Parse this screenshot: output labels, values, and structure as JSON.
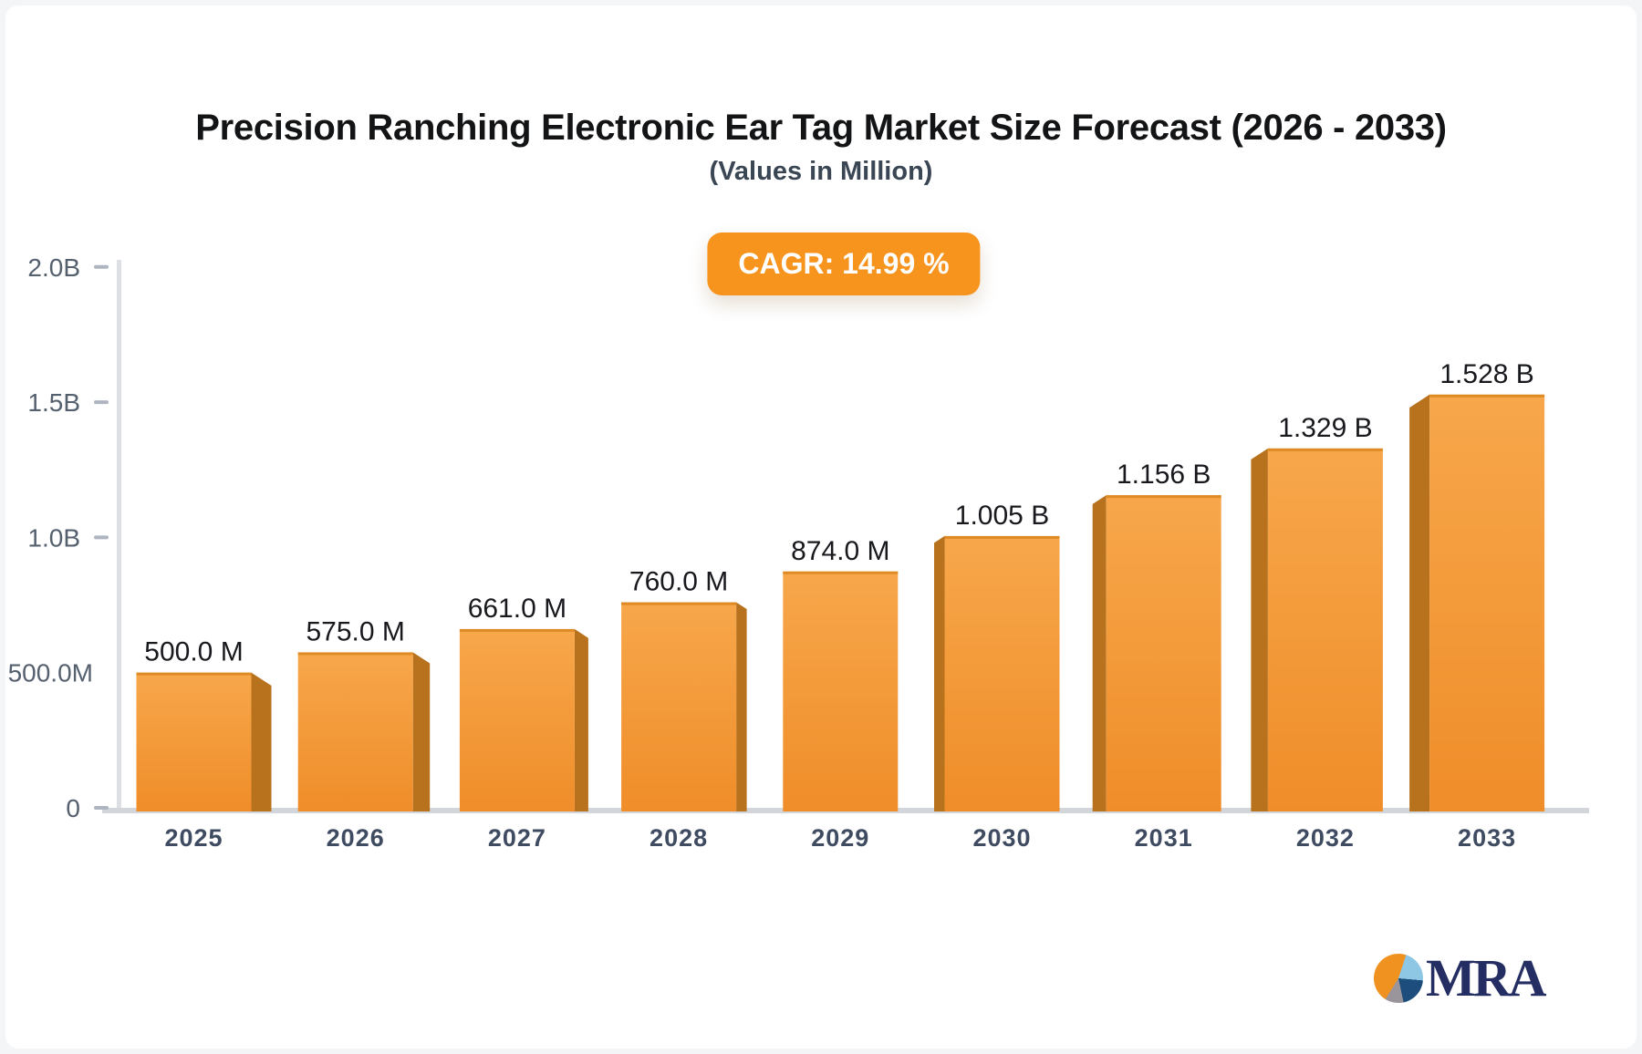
{
  "chart_data": {
    "type": "bar",
    "title": "Precision Ranching Electronic Ear Tag Market Size Forecast (2026 - 2033)",
    "subtitle": "(Values in Million)",
    "badge_label": "CAGR: 14.99 %",
    "categories": [
      "2025",
      "2026",
      "2027",
      "2028",
      "2029",
      "2030",
      "2031",
      "2032",
      "2033"
    ],
    "values_million": [
      500,
      575,
      661,
      760,
      874,
      1005,
      1156,
      1329,
      1528
    ],
    "value_labels": [
      "500.0 M",
      "575.0 M",
      "661.0 M",
      "760.0 M",
      "874.0 M",
      "1.005 B",
      "1.156 B",
      "1.329 B",
      "1.528 B"
    ],
    "ylim_million": [
      0,
      2000
    ],
    "y_ticks": [
      {
        "label": "2.0B",
        "value_million": 2000,
        "dash": true
      },
      {
        "label": "1.5B",
        "value_million": 1500,
        "dash": true
      },
      {
        "label": "1.0B",
        "value_million": 1000,
        "dash": true
      },
      {
        "label": "500.0M",
        "value_million": 500,
        "dash": false
      },
      {
        "label": "0",
        "value_million": 0,
        "dash": true
      }
    ],
    "grid": false,
    "legend": false,
    "colors": {
      "bar_gradient_top": "#f7a74b",
      "bar_gradient_bottom": "#ef8d29",
      "bar_side": "#b8721d",
      "bar_top_edge": "#da8821",
      "badge_background": "#f7941e",
      "axis_line": "#dcdfe4",
      "baseline": "#d2d5da",
      "tick_dash": "#aeb5c1"
    }
  },
  "branding": {
    "logo_text": "MRA"
  }
}
